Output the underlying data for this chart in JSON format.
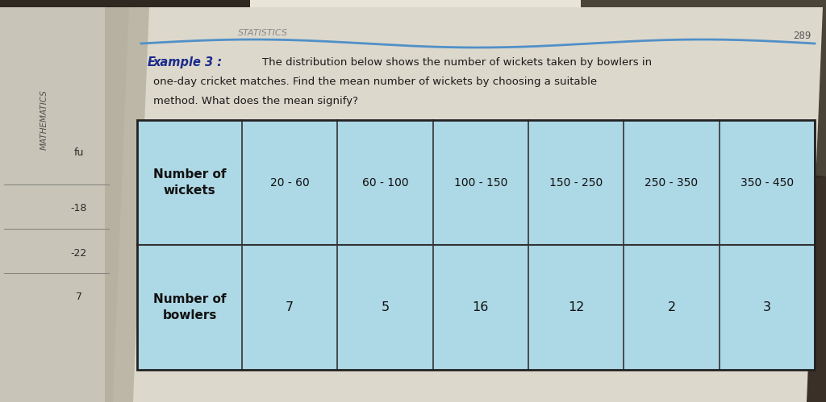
{
  "title_example": "xample 3 :",
  "title_example_prefix": "E",
  "line1": "The distribution below shows the number of wickets taken by bowlers in",
  "line2": "one-day cricket matches. Find the mean number of wickets by choosing a suitable",
  "line3": "method. What does the mean signify?",
  "section_label": "STATISTICS",
  "page_number": "289",
  "row1_header": "Number of\nwickets",
  "row2_header": "Number of\nbowlers",
  "wicket_ranges": [
    "20 - 60",
    "60 - 100",
    "100 - 150",
    "150 - 250",
    "250 - 350",
    "350 - 450"
  ],
  "bowler_counts": [
    "7",
    "5",
    "16",
    "12",
    "2",
    "3"
  ],
  "left_col_labels": [
    "fu",
    "-18",
    "-22",
    "7"
  ],
  "table_bg_color": "#add8e6",
  "page_color": "#ddd8cc",
  "left_page_color": "#c8c4b8",
  "dark_bg_color": "#3a3028",
  "dark_right_color": "#5a5048",
  "white_paper_color": "#f0ece0",
  "blue_line_color": "#5090c8",
  "example_color": "#1a2a8a",
  "text_color": "#1a1a1a",
  "stats_color": "#888888",
  "page_num_color": "#555555"
}
